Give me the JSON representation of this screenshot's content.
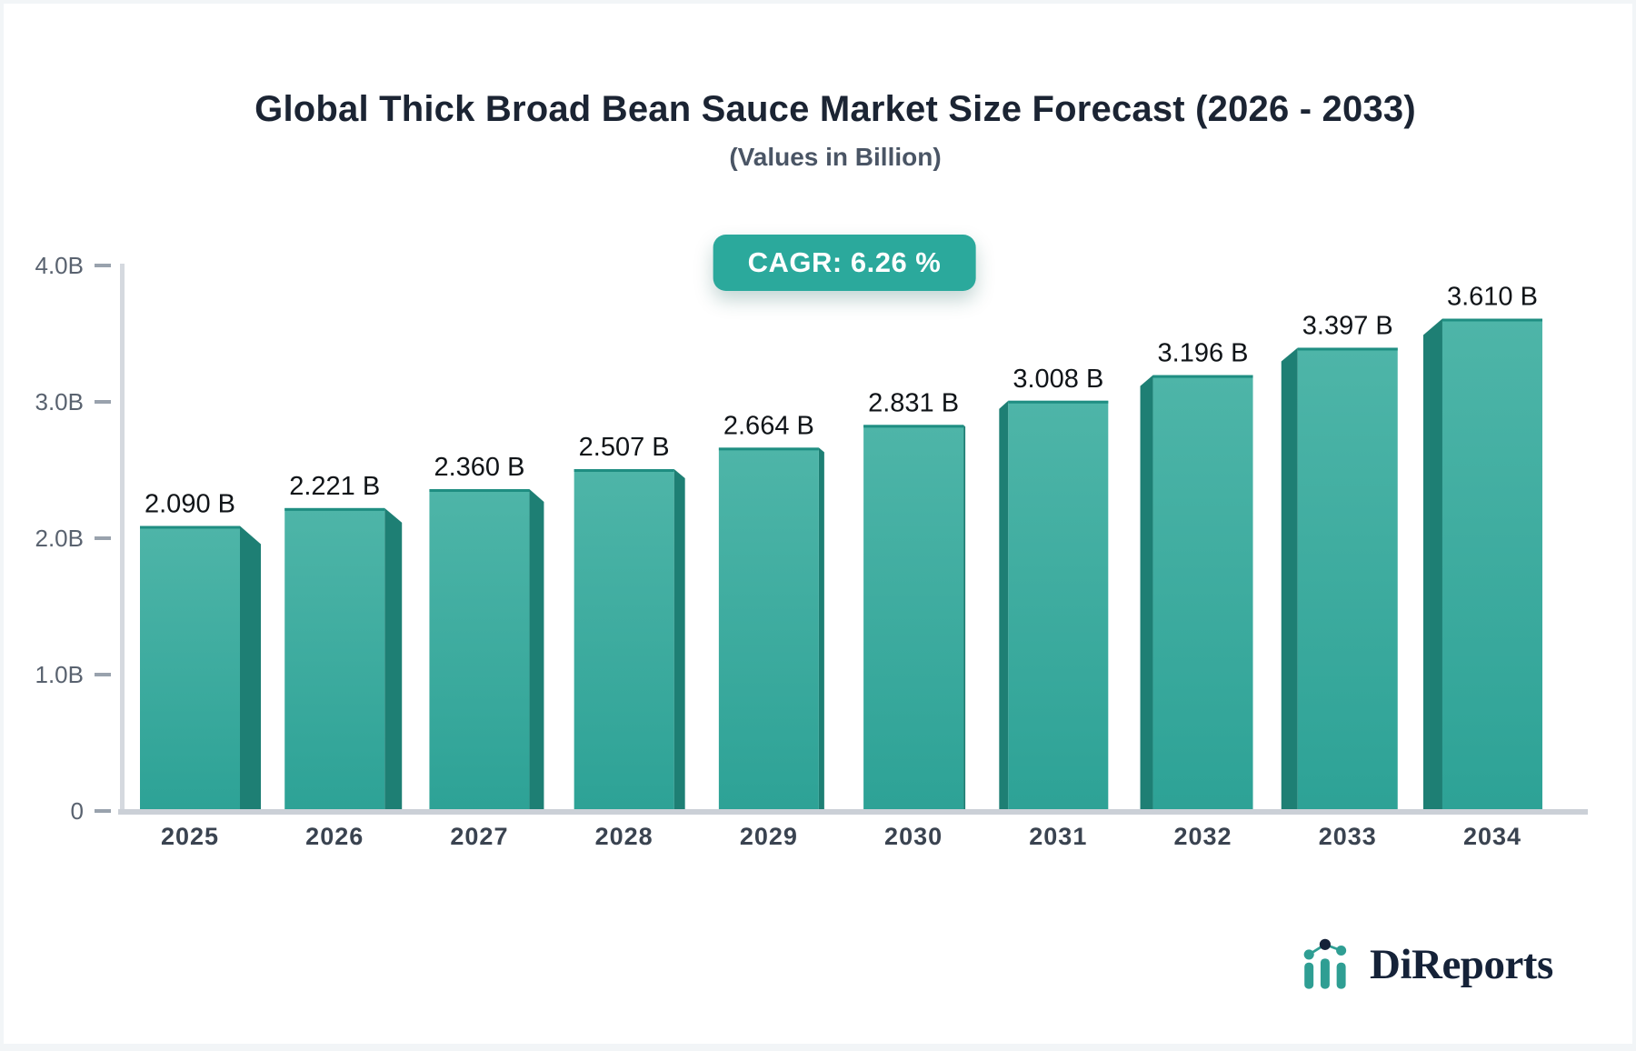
{
  "header": {
    "title": "Global Thick Broad Bean Sauce Market Size Forecast (2026 - 2033)",
    "subtitle": "(Values in Billion)"
  },
  "cagr_badge": {
    "label": "CAGR: 6.26 %",
    "background": "#2ba99c",
    "text_color": "#ffffff"
  },
  "chart_data": {
    "type": "bar",
    "title": "Global Thick Broad Bean Sauce Market Size Forecast (2026 - 2033)",
    "subtitle": "(Values in Billion)",
    "unit": "Billion",
    "categories": [
      "2025",
      "2026",
      "2027",
      "2028",
      "2029",
      "2030",
      "2031",
      "2032",
      "2033",
      "2034"
    ],
    "values": [
      2.09,
      2.221,
      2.36,
      2.507,
      2.664,
      2.831,
      3.008,
      3.196,
      3.397,
      3.61
    ],
    "value_labels": [
      "2.090 B",
      "2.221 B",
      "2.360 B",
      "2.507 B",
      "2.664 B",
      "2.831 B",
      "3.008 B",
      "3.196 B",
      "3.397 B",
      "3.610 B"
    ],
    "cagr_percent": 6.26,
    "ylim": [
      0,
      4
    ],
    "y_ticks": [
      {
        "value": 0,
        "label": "0"
      },
      {
        "value": 1,
        "label": "1.0B"
      },
      {
        "value": 2,
        "label": "2.0B"
      },
      {
        "value": 3,
        "label": "3.0B"
      },
      {
        "value": 4,
        "label": "4.0B"
      }
    ],
    "grid": "off",
    "legend": "none",
    "colors": {
      "bar_top": "#4eb5a8",
      "bar_bottom": "#2da296",
      "bar_side": "#1e7f74",
      "bar_top_edge": "#1f8e82",
      "axis_line": "#d5d9df",
      "baseline": "#cbd0d7",
      "tick": "#99a2ad",
      "y_label": "#59626f",
      "x_label": "#3a4350",
      "value_label": "#101418"
    }
  },
  "logo": {
    "text": "DiReports",
    "icon": "mini-bar-line-chart-icon",
    "accent": "#2f9e93",
    "navy": "#152238"
  }
}
